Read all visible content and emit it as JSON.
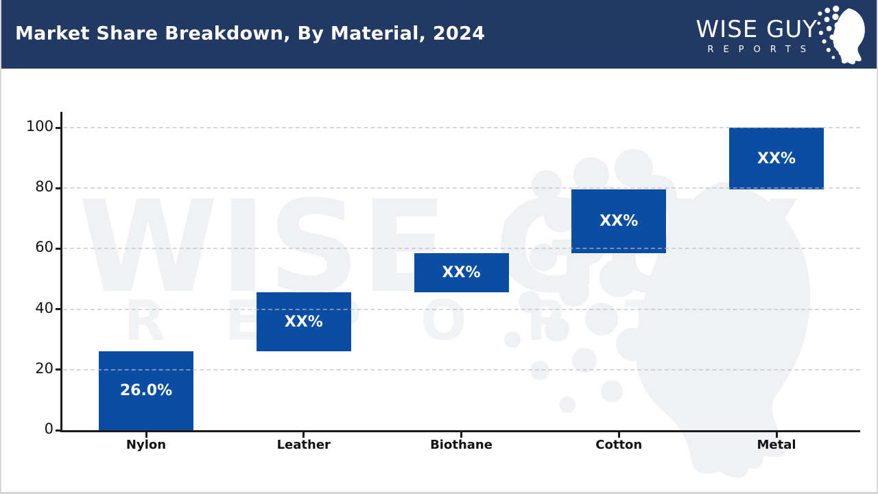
{
  "header": {
    "title": "Market Share Breakdown, By Material, 2024",
    "bg_color": "#223963",
    "logo": {
      "wordmark": "WISE GUY",
      "subtitle": "REPORTS"
    }
  },
  "watermark": {
    "wordmark": "WISE GUY",
    "subtitle": "REPORTS"
  },
  "chart_data": {
    "type": "bar",
    "subtype": "waterfall",
    "title": "Market Share Breakdown, By Material, 2024",
    "xlabel": "",
    "ylabel": "",
    "categories": [
      "Nylon",
      "Leather",
      "Biothane",
      "Cotton",
      "Metal"
    ],
    "segments": [
      {
        "category": "Nylon",
        "start": 0,
        "end": 26,
        "value_label": "26.0%"
      },
      {
        "category": "Leather",
        "start": 26,
        "end": 45.5,
        "value_label": "XX%"
      },
      {
        "category": "Biothane",
        "start": 45.5,
        "end": 58.5,
        "value_label": "XX%"
      },
      {
        "category": "Cotton",
        "start": 58.5,
        "end": 79.5,
        "value_label": "XX%"
      },
      {
        "category": "Metal",
        "start": 79.5,
        "end": 100,
        "value_label": "XX%"
      }
    ],
    "y_ticks": [
      0,
      20,
      40,
      60,
      80,
      100
    ],
    "ylim": [
      0,
      105
    ],
    "bar_color": "#0b4da2",
    "grid": "horizontal-dashed",
    "legend": "none"
  }
}
